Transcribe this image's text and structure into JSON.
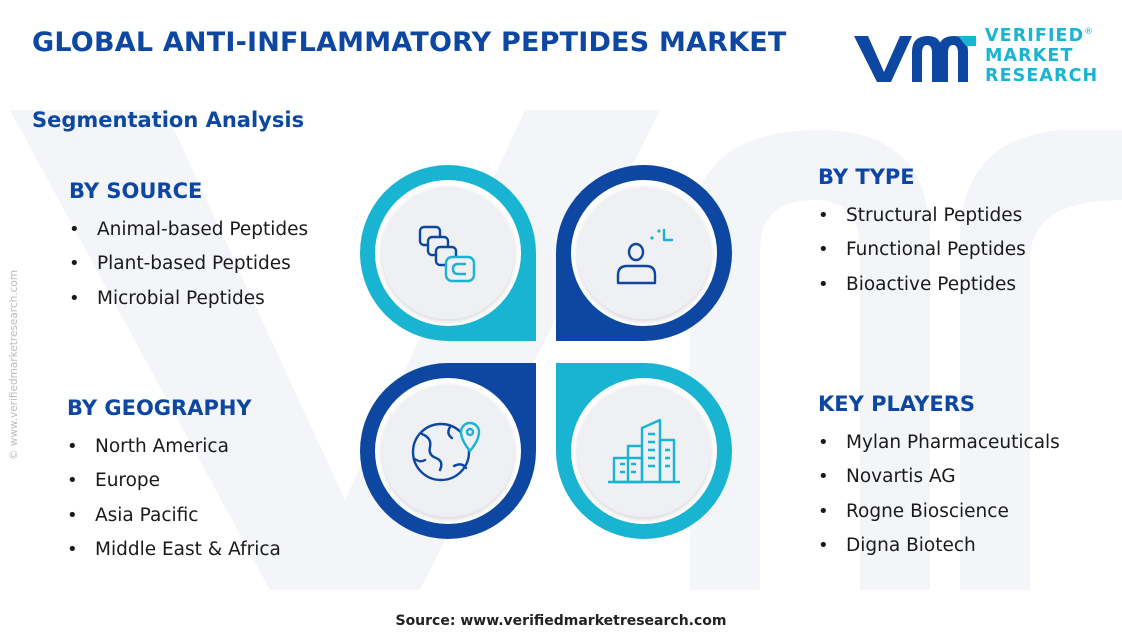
{
  "header": {
    "title": "GLOBAL ANTI-INFLAMMATORY PEPTIDES MARKET",
    "subtitle": "Segmentation Analysis"
  },
  "logo": {
    "line1": "VERIFIED",
    "line2": "MARKET",
    "line3": "RESEARCH",
    "registered": "®"
  },
  "side_watermark": "© www.verifiedmarketresearch.com",
  "segments": {
    "source": {
      "title": "BY SOURCE",
      "items": [
        "Animal-based Peptides",
        "Plant-based Peptides",
        "Microbial Peptides"
      ]
    },
    "type": {
      "title": "BY TYPE",
      "items": [
        "Structural Peptides",
        "Functional Peptides",
        "Bioactive Peptides"
      ]
    },
    "geography": {
      "title": "BY GEOGRAPHY",
      "items": [
        "North America",
        "Europe",
        "Asia Pacific",
        "Middle East & Africa"
      ]
    },
    "players": {
      "title": "KEY PLAYERS",
      "items": [
        "Mylan Pharmaceuticals",
        "Novartis AG",
        "Rogne Bioscience",
        "Digna Biotech"
      ]
    }
  },
  "bullet": "•",
  "icons": {
    "top_left": "layers-icon",
    "top_right": "user-analysis-icon",
    "bottom_left": "globe-location-icon",
    "bottom_right": "city-buildings-icon"
  },
  "colors": {
    "dark_blue": "#0d47a1",
    "cyan": "#19b4d1",
    "inner_circle": "#eef0f3"
  },
  "footer": {
    "source": "Source: www.verifiedmarketresearch.com"
  }
}
